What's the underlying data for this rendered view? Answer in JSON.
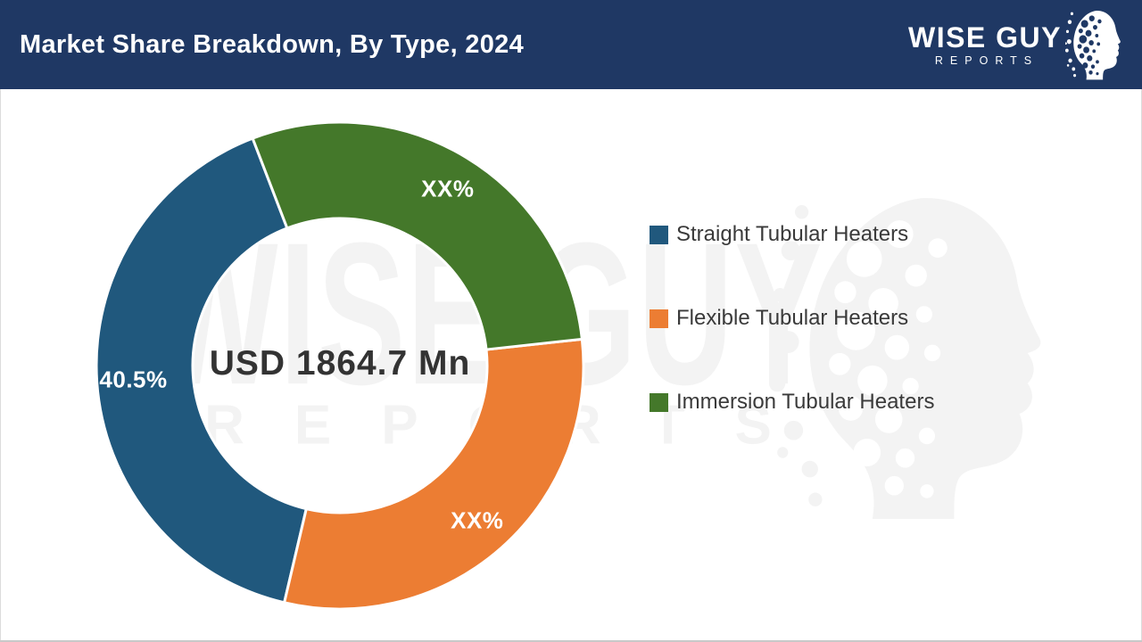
{
  "header": {
    "title": "Market Share Breakdown, By Type, 2024",
    "bg_color": "#1f3864",
    "logo": {
      "line1": "WISE GUY",
      "line2": "REPORTS",
      "icon": "wiseguy-face-icon"
    }
  },
  "watermark": {
    "line1": "WISE GUY",
    "line2": "REPORTS",
    "icon": "wiseguy-face-icon",
    "color": "#f3f3f3"
  },
  "chart_data": {
    "type": "pie",
    "subtype": "donut",
    "title": "Market Share Breakdown, By Type, 2024",
    "center_label": "USD 1864.7 Mn",
    "start_angle_deg": 111,
    "direction": "counterclockwise",
    "legend_position": "right",
    "segments": [
      {
        "label": "Straight Tubular Heaters",
        "display_value": "40.5%",
        "pct": 40.5,
        "color": "#20587d"
      },
      {
        "label": "Flexible Tubular Heaters",
        "display_value": "XX%",
        "pct": 30.4,
        "color": "#ec7d33"
      },
      {
        "label": "Immersion Tubular Heaters",
        "display_value": "XX%",
        "pct": 29.1,
        "color": "#44782a"
      }
    ]
  }
}
